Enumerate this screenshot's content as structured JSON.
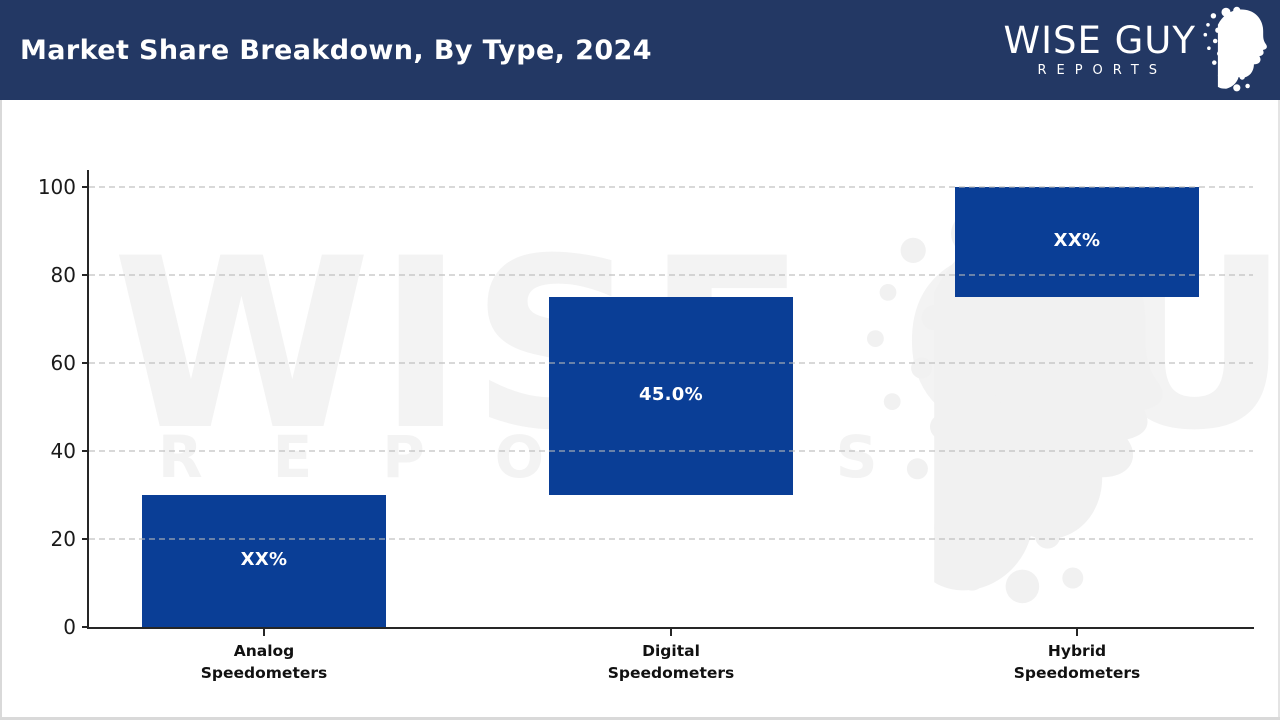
{
  "header": {
    "title": "Market Share Breakdown, By Type, 2024",
    "logo": {
      "line1": "WISE GUY",
      "line2": "REPORTS"
    }
  },
  "watermark": {
    "line1": "WISE GUY",
    "line2": "REPORTS"
  },
  "chart_data": {
    "type": "bar",
    "subtype": "waterfall",
    "title": "Market Share Breakdown, By Type, 2024",
    "categories": [
      "Analog Speedometers",
      "Digital Speedometers",
      "Hybrid Speedometers"
    ],
    "category_lines": [
      [
        "Analog",
        "Speedometers"
      ],
      [
        "Digital",
        "Speedometers"
      ],
      [
        "Hybrid",
        "Speedometers"
      ]
    ],
    "segments": [
      {
        "category": "Analog Speedometers",
        "start": 0,
        "end": 30,
        "value": 30,
        "label": "XX%"
      },
      {
        "category": "Digital Speedometers",
        "start": 30,
        "end": 75,
        "value": 45,
        "label": "45.0%"
      },
      {
        "category": "Hybrid Speedometers",
        "start": 75,
        "end": 100,
        "value": 25,
        "label": "XX%"
      }
    ],
    "yticks": [
      0,
      20,
      40,
      60,
      80,
      100
    ],
    "ylim": [
      0,
      104
    ],
    "xlabel": "",
    "ylabel": "",
    "grid": true,
    "grid_axis": "y",
    "legend": false,
    "bar_color": "#0a3e96",
    "bar_label_color": "#ffffff"
  },
  "colors": {
    "header_bg": "#233864",
    "bar": "#0a3e96",
    "axis": "#262626",
    "tick_label": "#1a1a1a",
    "watermark": "#f2f2f2",
    "border": "#d9d9d9"
  }
}
